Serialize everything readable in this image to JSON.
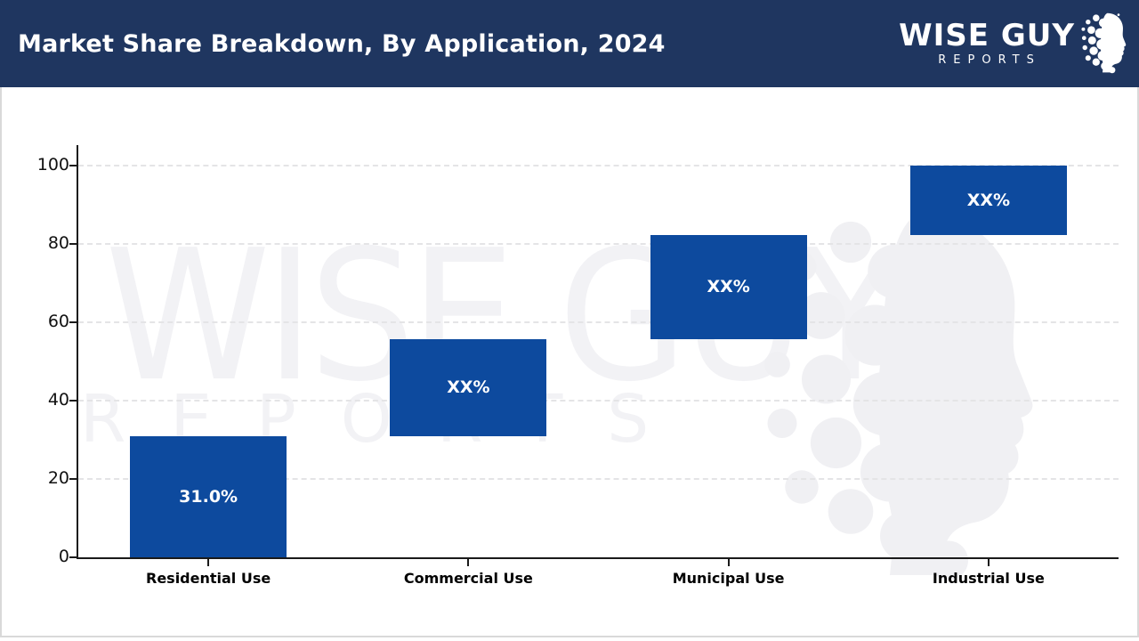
{
  "header": {
    "title": "Market Share Breakdown, By Application, 2024",
    "background_color": "#1f3660",
    "logo": {
      "line1": "WISE GUY",
      "line2": "REPORTS"
    }
  },
  "watermark": {
    "line1": "WISE GUY",
    "line2": "REPORTS"
  },
  "chart_data": {
    "type": "bar",
    "variant": "waterfall",
    "title": "Market Share Breakdown, By Application, 2024",
    "categories": [
      "Residential Use",
      "Commercial Use",
      "Municipal Use",
      "Industrial Use"
    ],
    "bars": [
      {
        "category": "Residential Use",
        "start": 0,
        "end": 31,
        "label": "31.0%"
      },
      {
        "category": "Commercial Use",
        "start": 31,
        "end": 55.7,
        "label": "XX%"
      },
      {
        "category": "Municipal Use",
        "start": 55.7,
        "end": 82.3,
        "label": "XX%"
      },
      {
        "category": "Industrial Use",
        "start": 82.3,
        "end": 100,
        "label": "XX%"
      }
    ],
    "xlabel": "",
    "ylabel": "",
    "yticks": [
      0,
      20,
      40,
      60,
      80,
      100
    ],
    "ylim": [
      0,
      105
    ],
    "grid": "horizontal-dashed",
    "grid_color": "#e4e4e6",
    "bar_color": "#0d4a9e",
    "bar_label_color": "#ffffff",
    "axis_color": "#1a1a1a",
    "legend": "none"
  }
}
